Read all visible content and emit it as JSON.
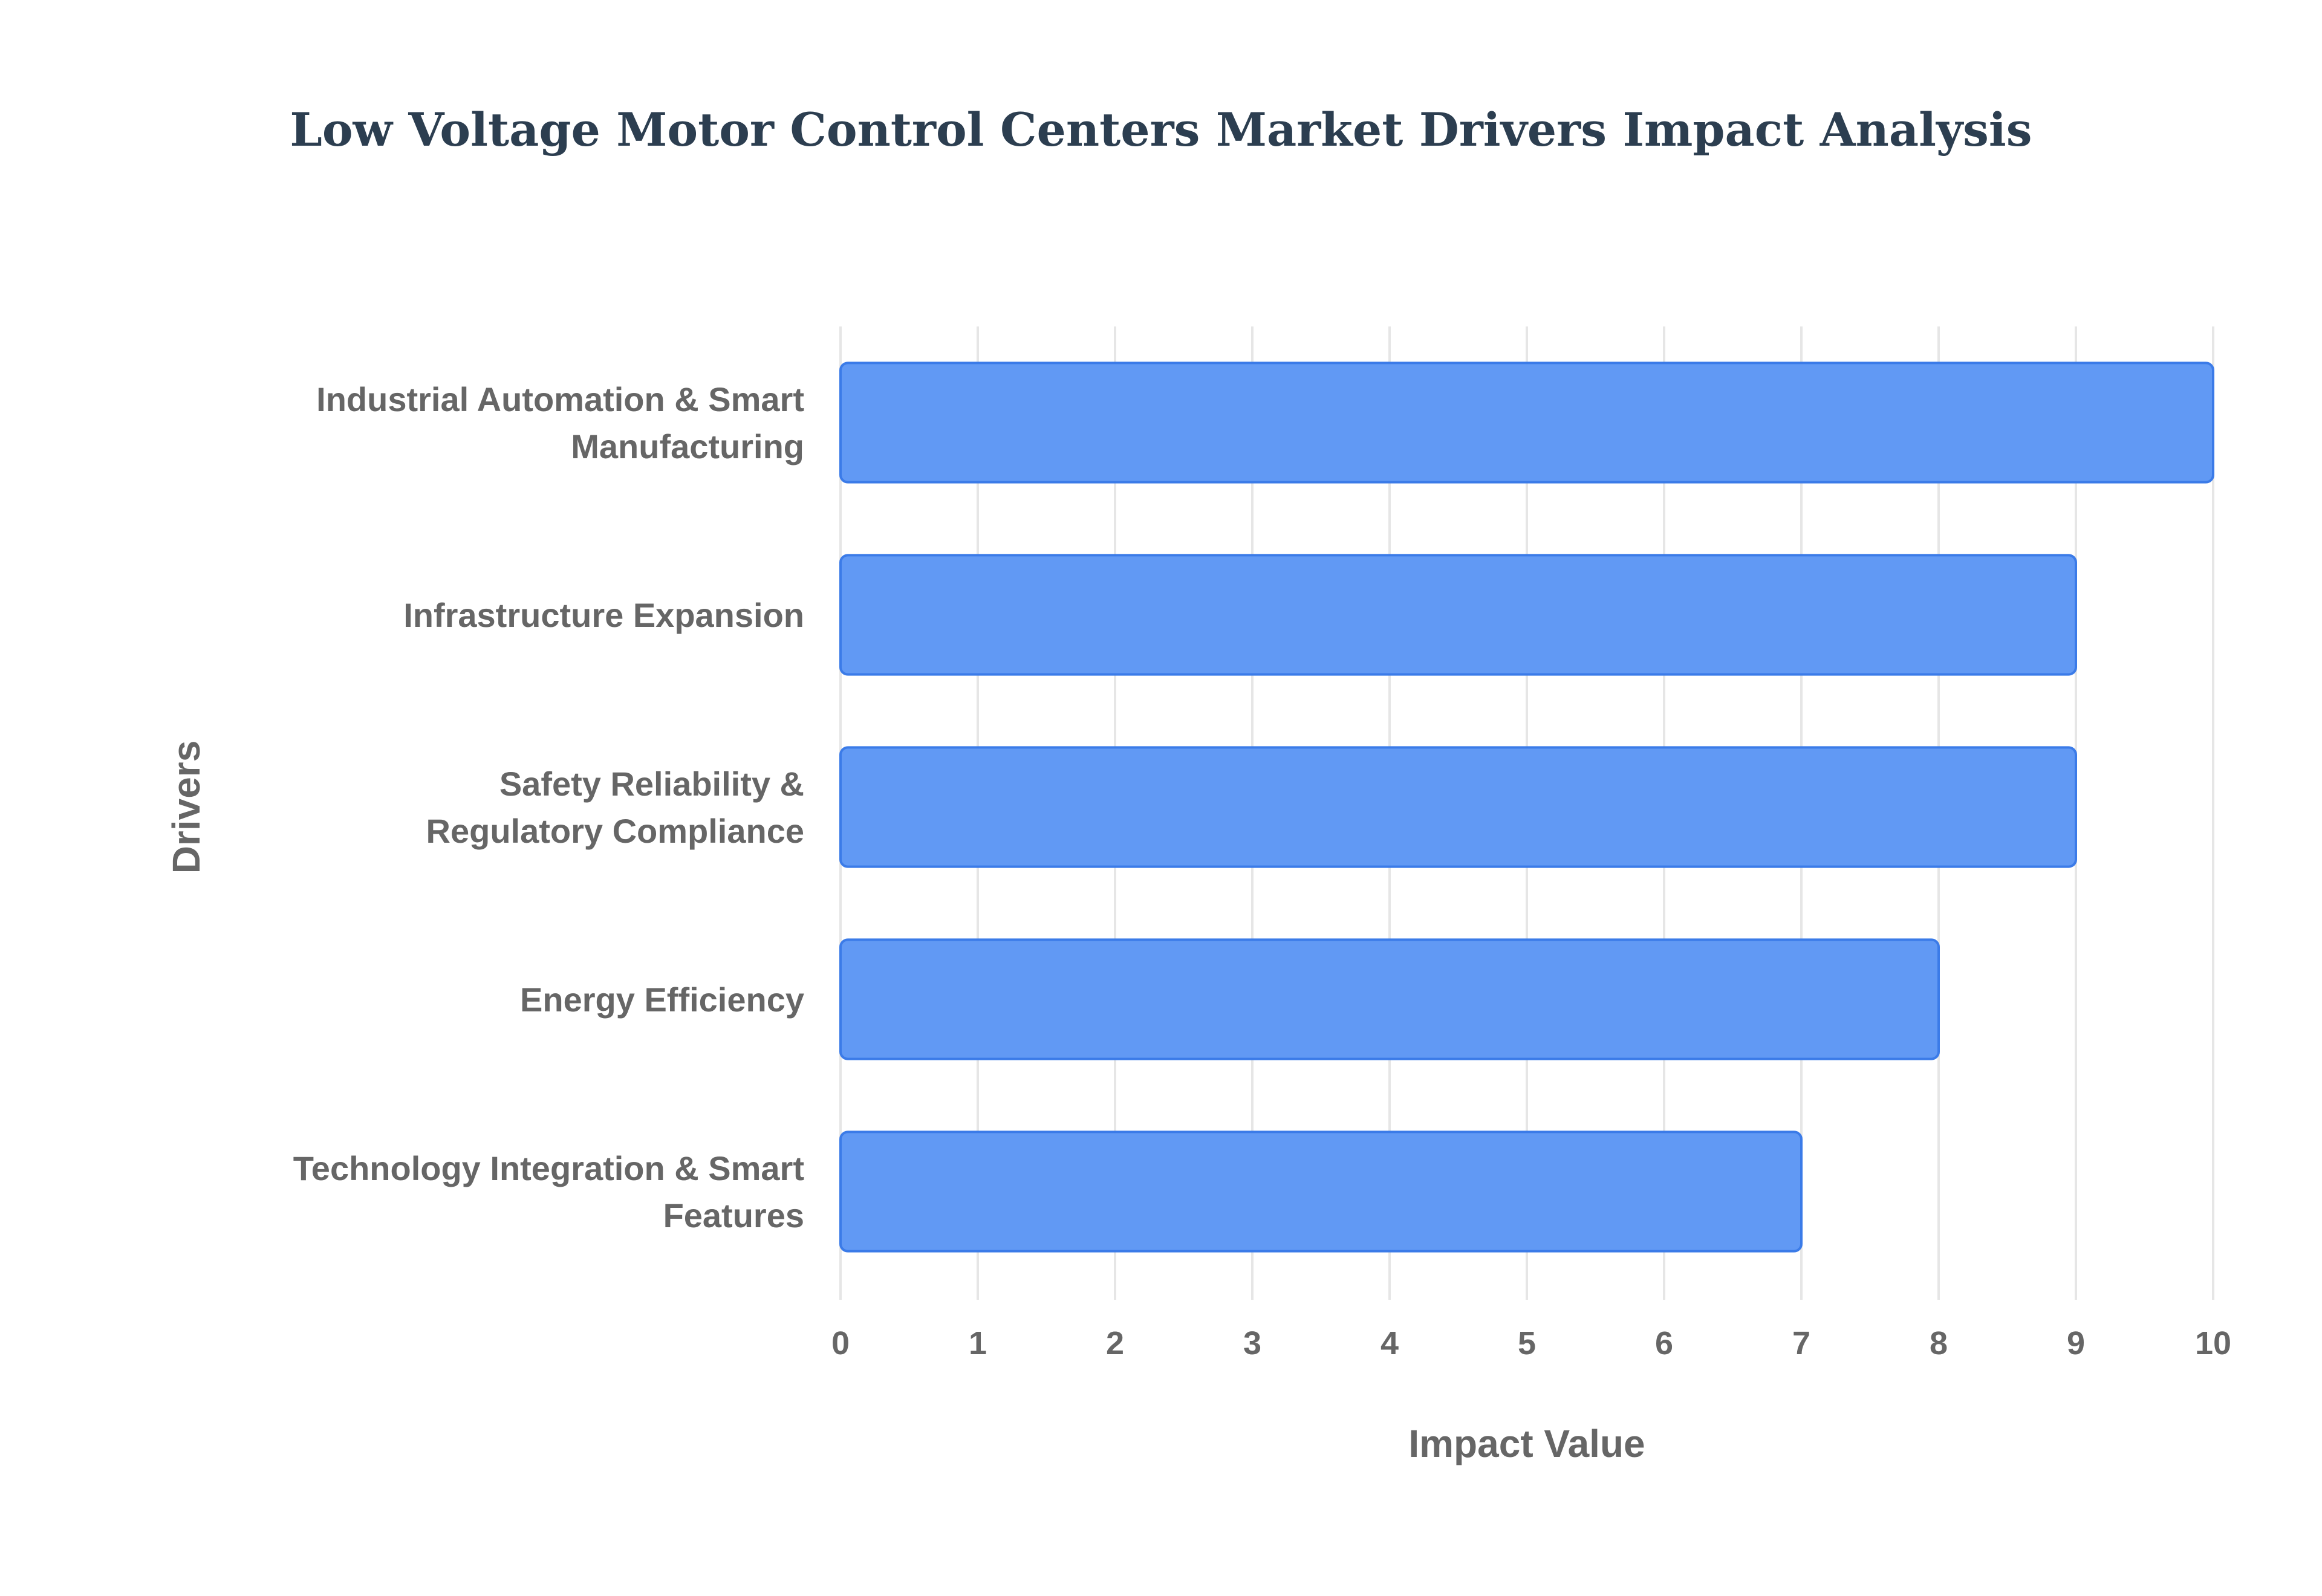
{
  "chart_data": {
    "type": "bar",
    "orientation": "horizontal",
    "title": "Low Voltage Motor Control Centers Market Drivers Impact Analysis",
    "xlabel": "Impact Value",
    "ylabel": "Drivers",
    "categories": [
      [
        "Industrial Automation & Smart",
        "Manufacturing"
      ],
      [
        "Infrastructure Expansion"
      ],
      [
        "Safety Reliability &",
        "Regulatory Compliance"
      ],
      [
        "Energy Efficiency"
      ],
      [
        "Technology Integration & Smart",
        "Features"
      ]
    ],
    "values": [
      10,
      9,
      9,
      8,
      7
    ],
    "xlim": [
      0,
      10
    ],
    "xticks": [
      "0",
      "1",
      "2",
      "3",
      "4",
      "5",
      "6",
      "7",
      "8",
      "9",
      "10"
    ],
    "grid": true,
    "legend": "none",
    "bar_color": "#6199f4",
    "bar_edge_color": "#3b7be8",
    "grid_color": "#e6e6e6",
    "title_color": "#2c3e50",
    "label_color": "#666666"
  }
}
